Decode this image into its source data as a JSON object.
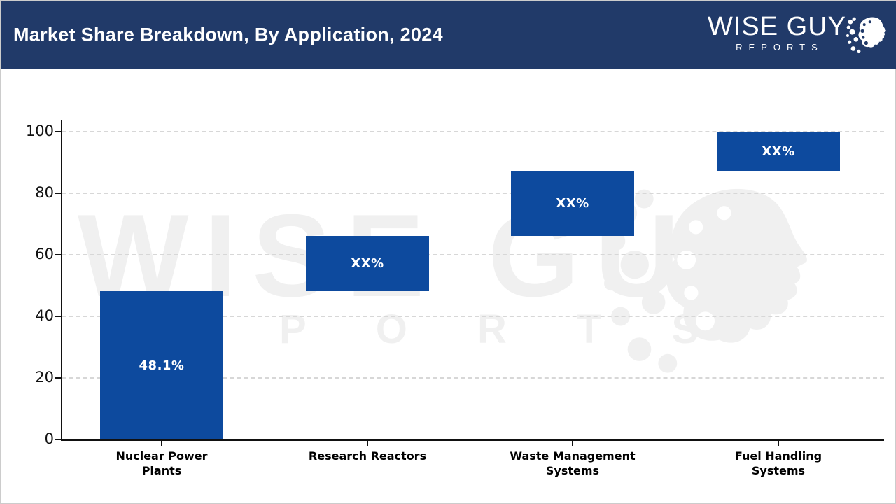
{
  "header": {
    "title": "Market Share Breakdown, By Application, 2024",
    "bg_color": "#213a69",
    "logo_line1": "WISE GUY",
    "logo_line2": "REPORTS"
  },
  "watermark": {
    "line1": "WISE GUY",
    "line2": "P O R T S"
  },
  "chart_data": {
    "type": "bar",
    "subtype": "floating-segment waterfall, cumulative market share",
    "title": "Market Share Breakdown, By Application, 2024",
    "xlabel": "",
    "ylabel": "",
    "ylim": [
      0,
      105
    ],
    "yticks": [
      0,
      20,
      40,
      60,
      80,
      100
    ],
    "grid": "horizontal dashed light-gray",
    "legend": "none",
    "bar_color": "#0d4a9e",
    "label_color": "#ffffff",
    "categories": [
      "Nuclear Power Plants",
      "Research Reactors",
      "Waste Management Systems",
      "Fuel Handling Systems"
    ],
    "category_lines": [
      [
        "Nuclear Power",
        "Plants"
      ],
      [
        "Research Reactors"
      ],
      [
        "Waste Management",
        "Systems"
      ],
      [
        "Fuel Handling",
        "Systems"
      ]
    ],
    "bars": [
      {
        "category": "Nuclear Power Plants",
        "start": 0,
        "end": 48.1,
        "label": "48.1%"
      },
      {
        "category": "Research Reactors",
        "start": 48.1,
        "end": 66.1,
        "label": "XX%"
      },
      {
        "category": "Waste Management Systems",
        "start": 66.1,
        "end": 87.3,
        "label": "XX%"
      },
      {
        "category": "Fuel Handling Systems",
        "start": 87.3,
        "end": 99.9,
        "label": "XX%"
      }
    ]
  }
}
